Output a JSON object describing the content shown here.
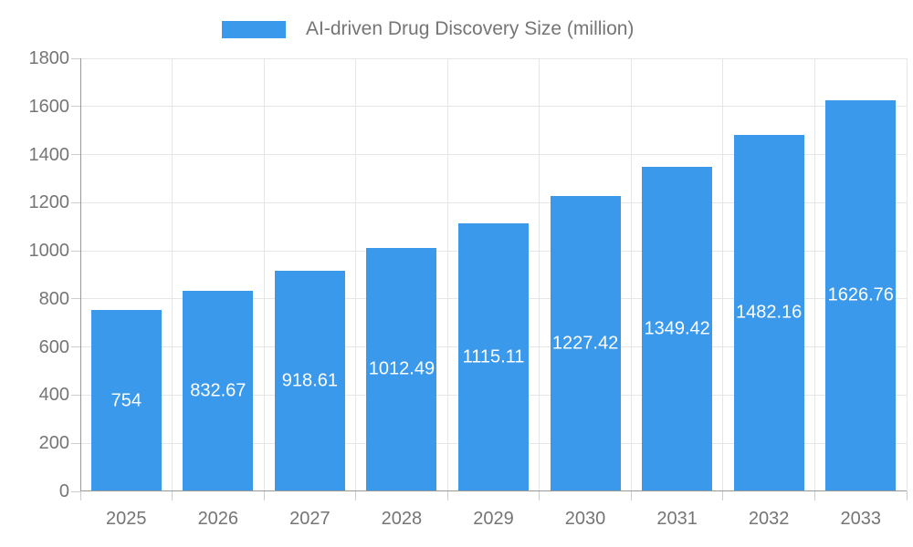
{
  "legend": {
    "label": "AI-driven Drug Discovery Size (million)",
    "position": "top-center"
  },
  "chart_data": {
    "type": "bar",
    "title": "AI-driven Drug Discovery Size (million)",
    "categories": [
      "2025",
      "2026",
      "2027",
      "2028",
      "2029",
      "2030",
      "2031",
      "2032",
      "2033"
    ],
    "values": [
      754,
      832.67,
      918.61,
      1012.49,
      1115.11,
      1227.42,
      1349.42,
      1482.16,
      1626.76
    ],
    "value_labels": [
      "754",
      "832.67",
      "918.61",
      "1012.49",
      "1115.11",
      "1227.42",
      "1349.42",
      "1482.16",
      "1626.76"
    ],
    "xlabel": "",
    "ylabel": "",
    "ylim": [
      0,
      1800
    ],
    "y_ticks": [
      0,
      200,
      400,
      600,
      800,
      1000,
      1200,
      1400,
      1600,
      1800
    ],
    "grid": true,
    "legend_position": "top-center",
    "colors": {
      "bar": "#3b99ec",
      "grid": "#e6e6e6",
      "axis": "#999999",
      "tick": "#cccccc",
      "axis_label_text": "#757575",
      "legend_text": "#6f6f6f",
      "bar_label_text": "#ffffff",
      "background": "#ffffff"
    }
  }
}
